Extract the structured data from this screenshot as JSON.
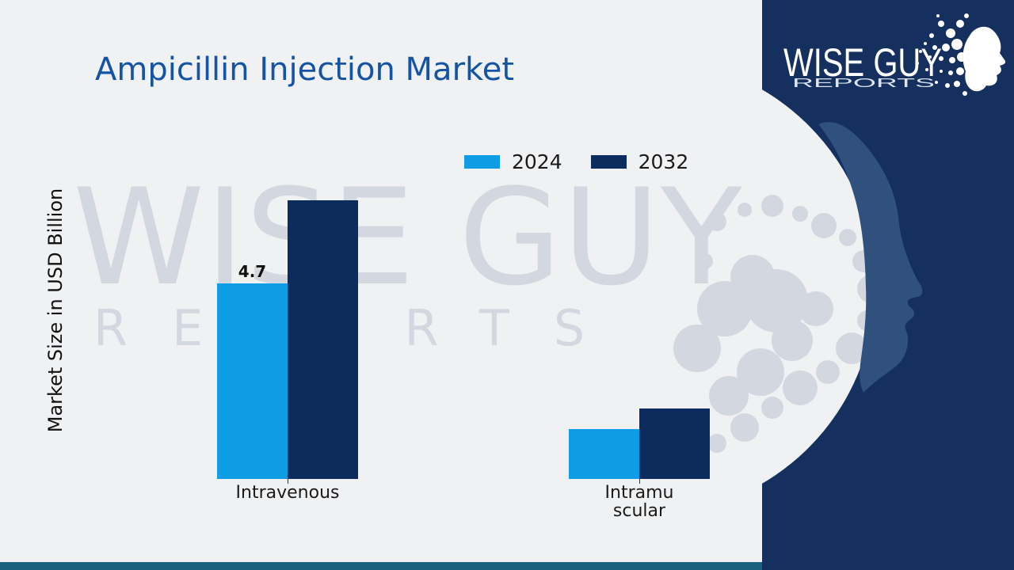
{
  "header": {
    "title": "Ampicillin Injection Market"
  },
  "watermark": {
    "line1": "WISE GUY",
    "line2": "REPORTS"
  },
  "logo": {
    "brand_top": "WISE GUY",
    "brand_bottom": "REPORTS"
  },
  "colors": {
    "background": "#f0f1f3",
    "title_blue": "#1553a4",
    "series_2024_blue": "#0e9ce4",
    "series_2032_navy": "#0d2c5e",
    "panel_navy": "#15305e",
    "teal_accent": "#1a617e",
    "watermark_gray": "#d3d7df",
    "head_silhouette_blue": "#30517e",
    "logo_white": "#ffffff",
    "logo_reports_pale": "#dbe4f0"
  },
  "chart_data": {
    "type": "bar",
    "title": "Ampicillin Injection Market",
    "xlabel": "",
    "ylabel": "Market Size in USD Billion",
    "categories": [
      "Intravenous",
      "Intramuscular"
    ],
    "tick_labels": [
      "Intravenous",
      "Intramu\nscular"
    ],
    "series": [
      {
        "name": "2024",
        "color": "#0e9ce4",
        "values": [
          4.7,
          1.2
        ],
        "labels": [
          "4.7",
          ""
        ]
      },
      {
        "name": "2032",
        "color": "#0d2c5e",
        "values": [
          6.7,
          1.7
        ],
        "labels": [
          "",
          ""
        ]
      }
    ],
    "ylim": [
      0,
      7.0
    ],
    "grid": false,
    "legend_position": "top"
  }
}
